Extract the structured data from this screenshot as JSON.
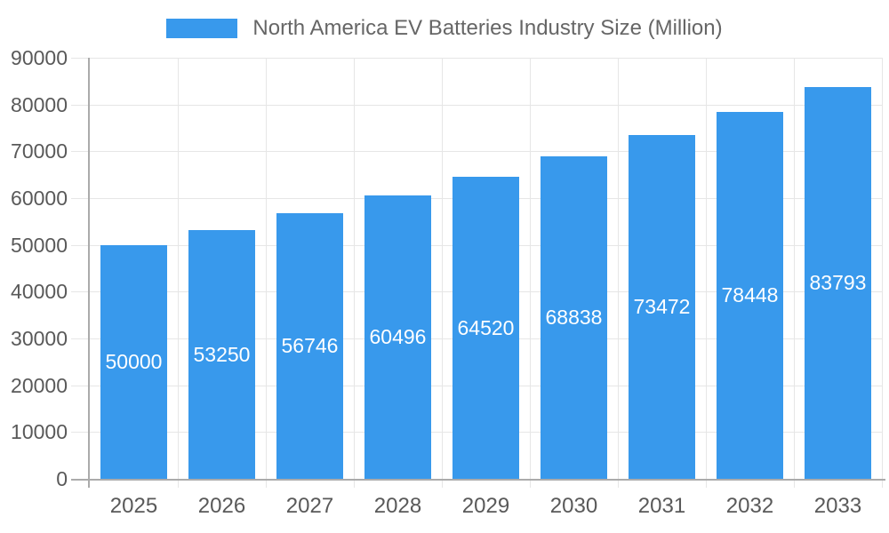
{
  "chart_data": {
    "type": "bar",
    "title": "North America EV Batteries Industry Size (Million)",
    "categories": [
      "2025",
      "2026",
      "2027",
      "2028",
      "2029",
      "2030",
      "2031",
      "2032",
      "2033"
    ],
    "values": [
      50000,
      53250,
      56746,
      60496,
      64520,
      68838,
      73472,
      78448,
      83793
    ],
    "xlabel": "",
    "ylabel": "",
    "ylim": [
      0,
      90000
    ],
    "ytick_step": 10000,
    "ytick_labels": [
      "0",
      "10000",
      "20000",
      "30000",
      "40000",
      "50000",
      "60000",
      "70000",
      "80000",
      "90000"
    ],
    "grid": true,
    "legend_position": "top-center",
    "value_label_position": "inside-center",
    "colors": {
      "bar": "#3899EC",
      "grid_line": "#E6E6E6",
      "axis_line": "#ABABAB",
      "axis_text": "#595959",
      "legend_text": "#666666",
      "value_label": "#FFFFFF",
      "background": "#FFFFFF"
    }
  }
}
